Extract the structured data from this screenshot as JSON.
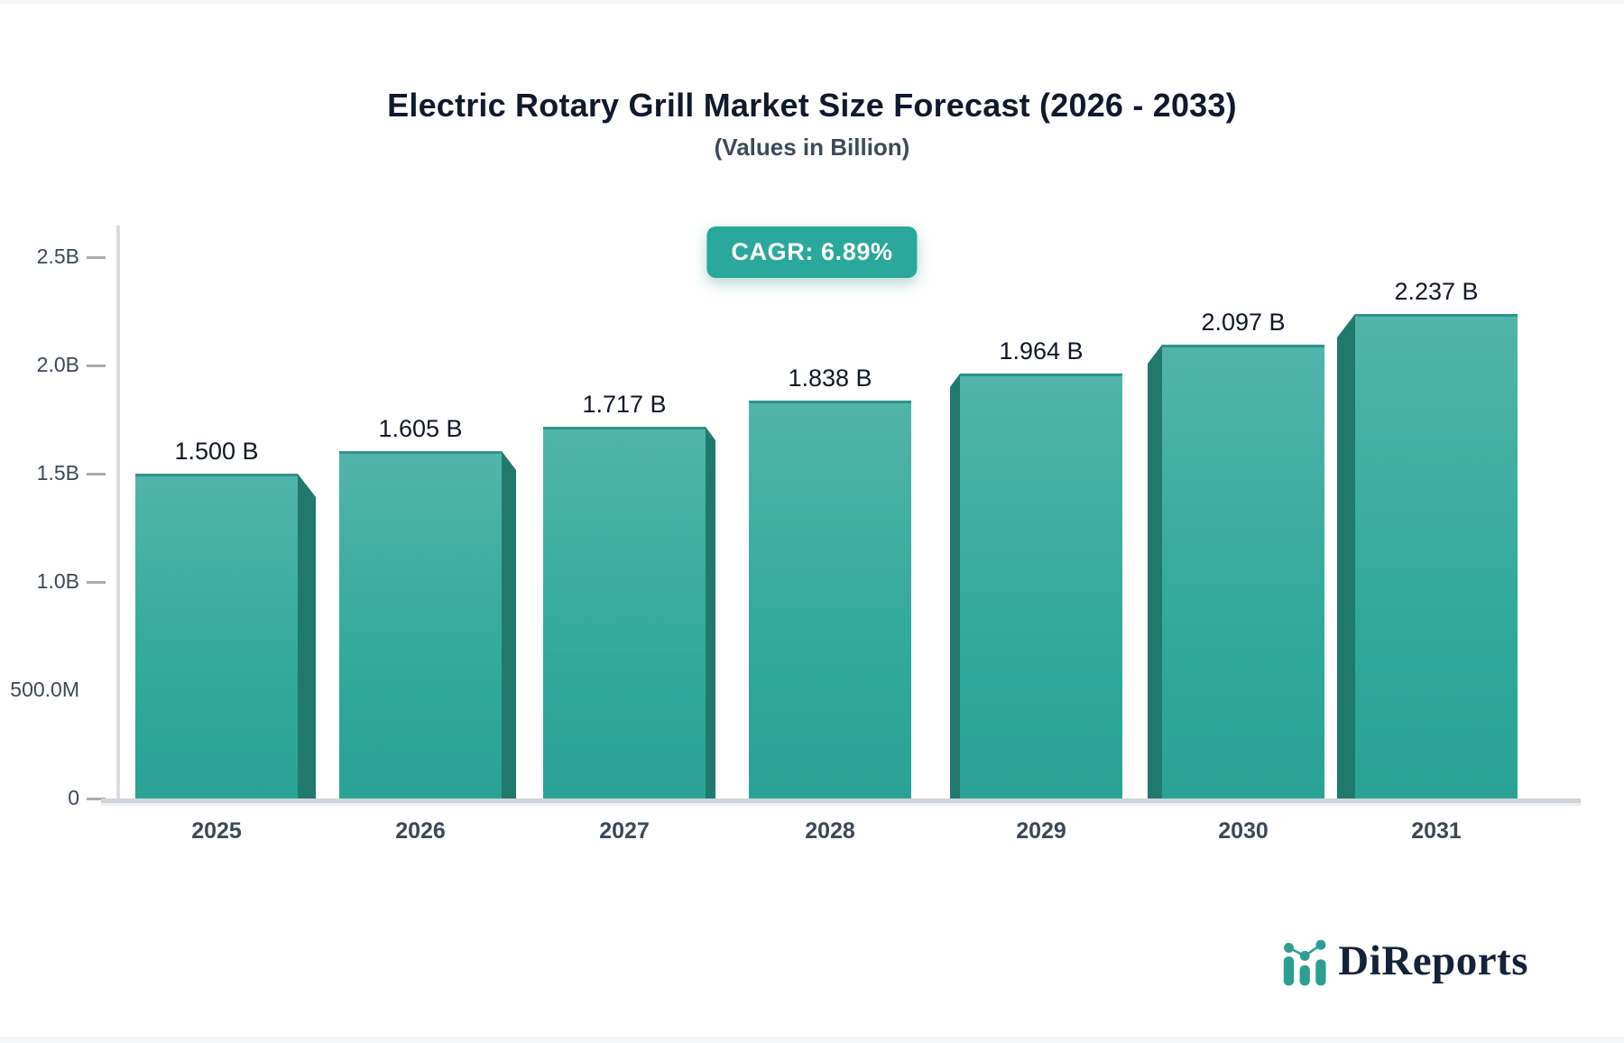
{
  "page": {
    "background": "#f6f7f9",
    "card_background": "#ffffff"
  },
  "header": {
    "cagr_label": "CAGR: 6.89%"
  },
  "chart_data": {
    "type": "bar",
    "title": "Electric Rotary Grill Market Size Forecast (2026 - 2033)",
    "subtitle": "(Values in Billion)",
    "cagr_percent": 6.89,
    "categories": [
      "2025",
      "2026",
      "2027",
      "2028",
      "2029",
      "2030",
      "2031"
    ],
    "values": [
      1.5,
      1.605,
      1.717,
      1.838,
      1.964,
      2.097,
      2.237
    ],
    "value_labels": [
      "1.500 B",
      "1.605 B",
      "1.717 B",
      "1.838 B",
      "1.964 B",
      "2.097 B",
      "2.237 B"
    ],
    "unit_suffix": "B",
    "ylim": [
      0,
      2.5
    ],
    "y_ticks": [
      {
        "label": "2.5B",
        "value": 2.5,
        "dash": true
      },
      {
        "label": "2.0B",
        "value": 2.0,
        "dash": true
      },
      {
        "label": "1.5B",
        "value": 1.5,
        "dash": true
      },
      {
        "label": "1.0B",
        "value": 1.0,
        "dash": true
      },
      {
        "label": "500.0M",
        "value": 0.5,
        "dash": false
      },
      {
        "label": "0",
        "value": 0.0,
        "dash": true
      }
    ],
    "grid": "off",
    "legend": "none",
    "bar_color": "#35ab9e",
    "bar_side_color": "#21796d"
  },
  "branding": {
    "logo_text": "DiReports",
    "logo_icon": "bar-chart-trend-icon",
    "logo_teal": "#2e9d92",
    "logo_navy": "#15233a"
  }
}
